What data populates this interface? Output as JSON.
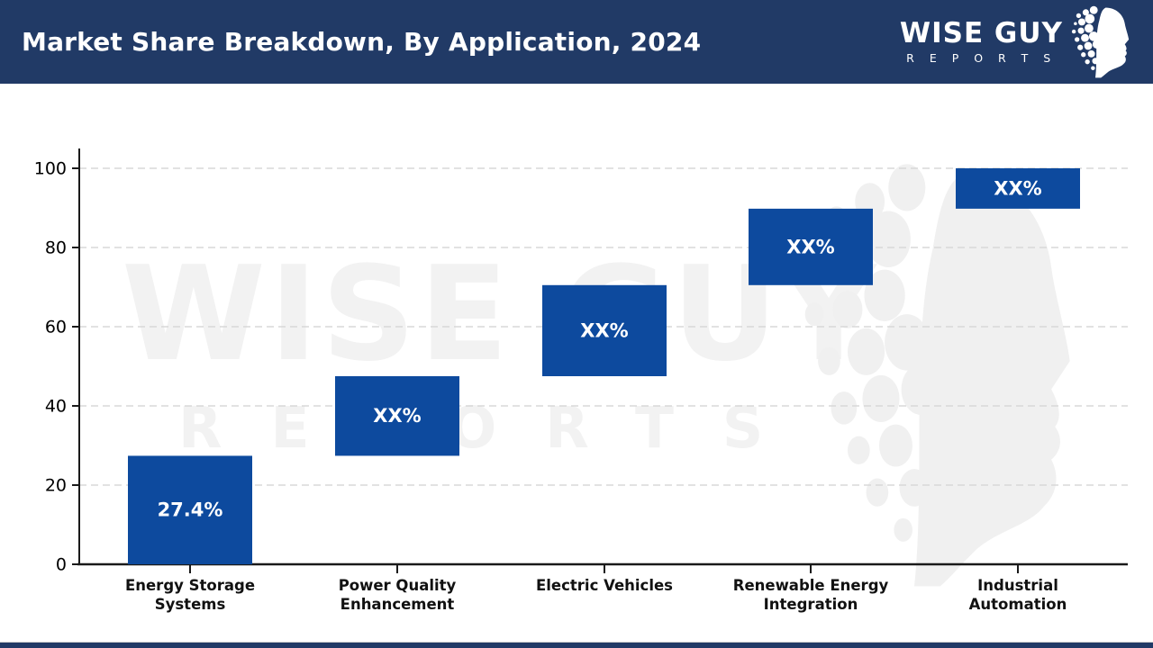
{
  "header": {
    "title": "Market Share Breakdown, By Application, 2024",
    "logo": {
      "wordmark": "WISE GUY",
      "subtitle": "R E P O R T S"
    }
  },
  "watermark": {
    "line1": "WISE GUY",
    "line2": "REPORTS"
  },
  "colors": {
    "header_bg": "#213a66",
    "footer_bg": "#213a66",
    "bar": "#0d4a9e",
    "grid": "#d8d8d8",
    "axis": "#1a1a1a",
    "watermark": "#f2f2f2",
    "bar_label_text": "#ffffff"
  },
  "chart_data": {
    "type": "bar",
    "variant": "waterfall",
    "title": "Market Share Breakdown, By Application, 2024",
    "categories": [
      "Energy Storage Systems",
      "Power Quality Enhancement",
      "Electric Vehicles",
      "Renewable Energy Integration",
      "Industrial Automation"
    ],
    "category_label_lines": [
      [
        "Energy Storage",
        "Systems"
      ],
      [
        "Power Quality",
        "Enhancement"
      ],
      [
        "Electric Vehicles"
      ],
      [
        "Renewable Energy",
        "Integration"
      ],
      [
        "Industrial",
        "Automation"
      ]
    ],
    "segments": [
      {
        "category": "Energy Storage Systems",
        "start": 0,
        "end": 27.4,
        "label": "27.4%"
      },
      {
        "category": "Power Quality Enhancement",
        "start": 27.4,
        "end": 47.5,
        "label": "XX%"
      },
      {
        "category": "Electric Vehicles",
        "start": 47.5,
        "end": 70.5,
        "label": "XX%"
      },
      {
        "category": "Renewable Energy Integration",
        "start": 70.5,
        "end": 89.8,
        "label": "XX%"
      },
      {
        "category": "Industrial Automation",
        "start": 89.8,
        "end": 100,
        "label": "XX%"
      }
    ],
    "xlabel": "",
    "ylabel": "",
    "y_ticks": [
      0,
      20,
      40,
      60,
      80,
      100
    ],
    "ylim": [
      0,
      105
    ],
    "grid": true,
    "grid_style": "dashed",
    "legend": null,
    "bar_color": "#0d4a9e"
  }
}
